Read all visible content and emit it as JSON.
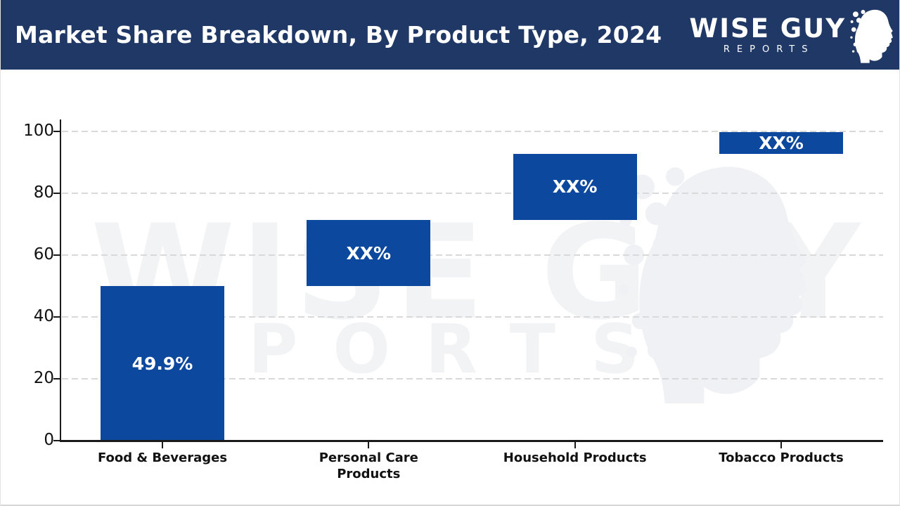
{
  "header": {
    "title": "Market Share Breakdown, By Product Type, 2024",
    "brand": {
      "name": "WISE GUY",
      "sub": "REPORTS"
    }
  },
  "watermark": {
    "line1": "WISE GUY",
    "line2": "PORTS"
  },
  "chart_data": {
    "type": "bar",
    "subtype": "waterfall-stacked",
    "title": "Market Share Breakdown, By Product Type, 2024",
    "categories": [
      "Food & Beverages",
      "Personal Care\nProducts",
      "Household Products",
      "Tobacco Products"
    ],
    "segments": [
      {
        "category": "Food & Beverages",
        "start": 0,
        "end": 49.9,
        "label": "49.9%"
      },
      {
        "category": "Personal Care Products",
        "start": 49.9,
        "end": 71.4,
        "label": "XX%"
      },
      {
        "category": "Household Products",
        "start": 71.4,
        "end": 92.8,
        "label": "XX%"
      },
      {
        "category": "Tobacco Products",
        "start": 92.8,
        "end": 99.8,
        "label": "XX%"
      }
    ],
    "ylim": [
      0,
      100
    ],
    "yticks": [
      0,
      20,
      40,
      60,
      80,
      100
    ],
    "xlabel": "",
    "ylabel": "",
    "grid": "horizontal-dashed",
    "legend": "none"
  },
  "colors": {
    "header_bg": "#203866",
    "bar": "#0c489e",
    "bar_label": "#ffffff",
    "gridline": "#d9d9d9",
    "axis": "#1a1a1a",
    "watermark": "#f2f3f5"
  }
}
